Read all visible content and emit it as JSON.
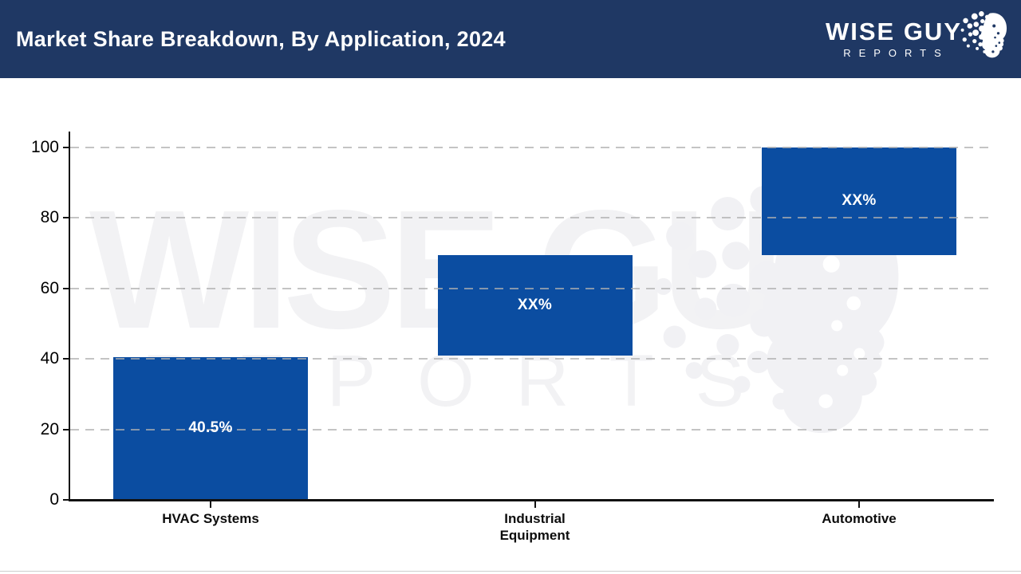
{
  "header": {
    "title": "Market Share Breakdown, By Application, 2024",
    "brand_line1": "WISE GUY",
    "brand_line2": "REPORTS"
  },
  "watermark": {
    "line1": "WISE GUY",
    "line2": "REPORTS"
  },
  "chart_data": {
    "type": "bar",
    "subtype": "floating-waterfall",
    "title": "Market Share Breakdown, By Application, 2024",
    "categories": [
      "HVAC Systems",
      "Industrial Equipment",
      "Automotive"
    ],
    "segments": [
      {
        "category": "HVAC Systems",
        "start": 0,
        "end": 40.5,
        "label": "40.5%"
      },
      {
        "category": "Industrial Equipment",
        "start": 41,
        "end": 69.5,
        "label": "XX%"
      },
      {
        "category": "Automotive",
        "start": 69.5,
        "end": 100,
        "label": "XX%"
      }
    ],
    "yticks": [
      0,
      20,
      40,
      60,
      80,
      100
    ],
    "ylim": [
      0,
      105
    ],
    "xlabel": "",
    "ylabel": "",
    "grid": "horizontal-dashed",
    "legend": "none",
    "bar_color": "#0b4da1",
    "bar_label_color": "#ffffff",
    "axis_color": "#111111",
    "header_color": "#1f3864"
  }
}
